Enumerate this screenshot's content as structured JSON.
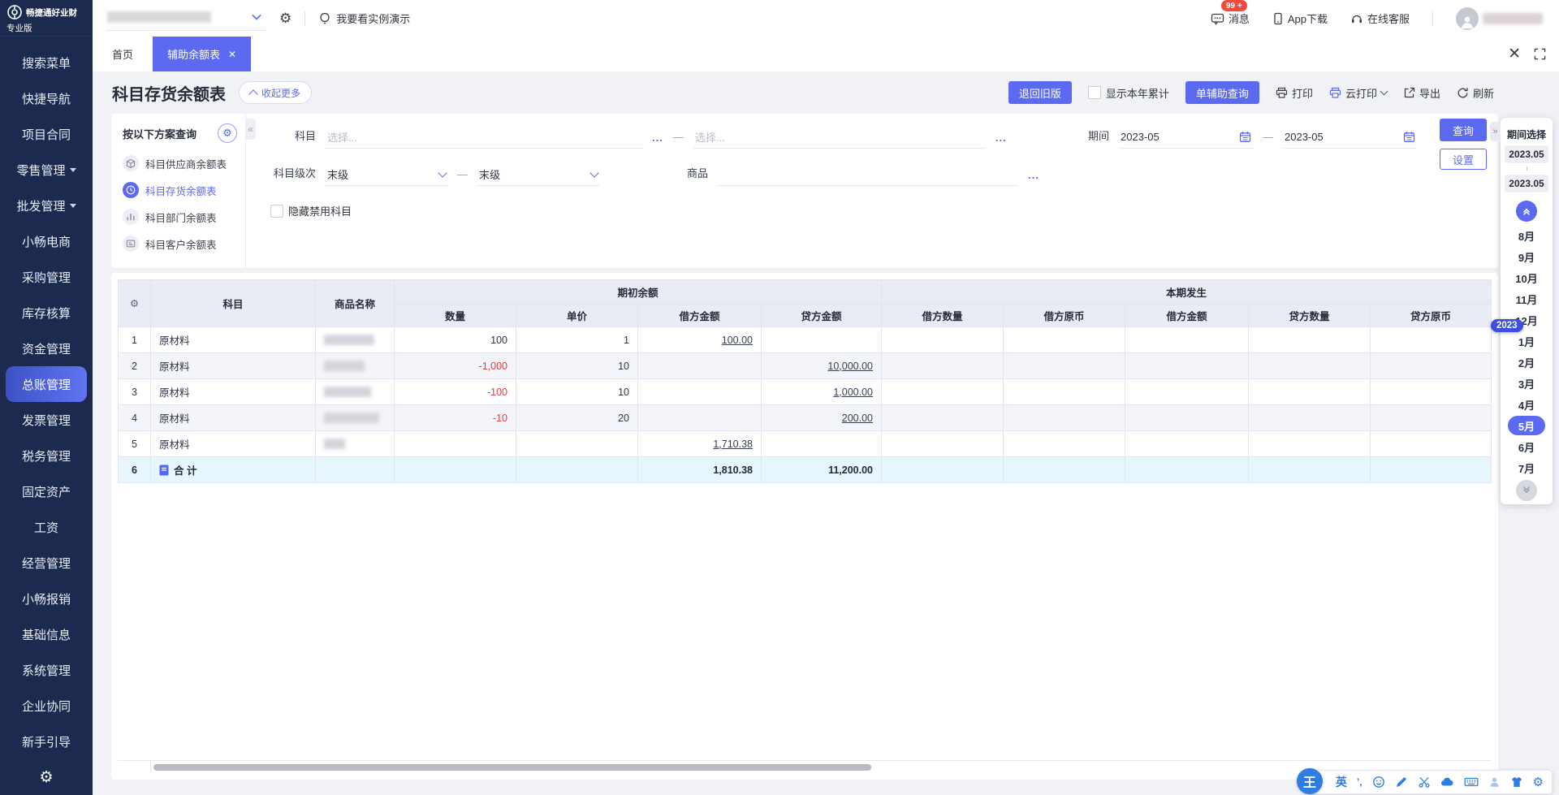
{
  "brand": {
    "name": "畅捷通好业财",
    "edition": "专业版"
  },
  "topbar": {
    "demo": "我要看实例演示",
    "messages": "消息",
    "messages_badge": "99 +",
    "app_download": "App下载",
    "online_service": "在线客服"
  },
  "tabs": {
    "home": "首页",
    "active": "辅助余额表"
  },
  "sidebar": {
    "items": [
      {
        "label": "搜索菜单"
      },
      {
        "label": "快捷导航"
      },
      {
        "label": "项目合同"
      },
      {
        "label": "零售管理",
        "caret": true
      },
      {
        "label": "批发管理",
        "caret": true
      },
      {
        "label": "小畅电商"
      },
      {
        "label": "采购管理"
      },
      {
        "label": "库存核算"
      },
      {
        "label": "资金管理"
      },
      {
        "label": "总账管理",
        "active": true
      },
      {
        "label": "发票管理"
      },
      {
        "label": "税务管理"
      },
      {
        "label": "固定资产"
      },
      {
        "label": "工资"
      },
      {
        "label": "经营管理"
      },
      {
        "label": "小畅报销"
      },
      {
        "label": "基础信息"
      },
      {
        "label": "系统管理"
      },
      {
        "label": "企业协同"
      },
      {
        "label": "新手引导"
      }
    ]
  },
  "toolbar": {
    "title": "科目存货余额表",
    "collapse": "收起更多",
    "back_old": "退回旧版",
    "show_ytd": "显示本年累计",
    "aux_query": "单辅助查询",
    "print": "打印",
    "cloud_print": "云打印",
    "export": "导出",
    "refresh": "刷新"
  },
  "scheme": {
    "title": "按以下方案查询",
    "items": [
      {
        "label": "科目供应商余额表",
        "icon": "cube"
      },
      {
        "label": "科目存货余额表",
        "icon": "clock",
        "active": true
      },
      {
        "label": "科目部门余额表",
        "icon": "chart"
      },
      {
        "label": "科目客户余额表",
        "icon": "card"
      }
    ]
  },
  "filters": {
    "subject": "科目",
    "placeholder": "选择...",
    "ellipsis": "...",
    "dash": "—",
    "period": "期间",
    "period_from": "2023-05",
    "period_to": "2023-05",
    "level": "科目级次",
    "level_from": "末级",
    "level_to": "末级",
    "product": "商品",
    "hide_disabled": "隐藏禁用科目",
    "query": "查询",
    "settings": "设置"
  },
  "table": {
    "subject_col": "科目",
    "product_col": "商品名称",
    "opening_group": "期初余额",
    "current_group": "本期发生",
    "opening_cols": [
      "数量",
      "单价",
      "借方金额",
      "贷方金额"
    ],
    "current_cols": [
      "借方数量",
      "借方原币",
      "借方金额",
      "贷方数量",
      "贷方原币"
    ],
    "rows": [
      {
        "no": "1",
        "subject": "原材料",
        "redact": 62,
        "qty": "100",
        "price": "1",
        "debit": "100.00",
        "credit": ""
      },
      {
        "no": "2",
        "subject": "原材料",
        "redact": 50,
        "qty": "-1,000",
        "price": "10",
        "debit": "",
        "credit": "10,000.00"
      },
      {
        "no": "3",
        "subject": "原材料",
        "redact": 58,
        "qty": "-100",
        "price": "10",
        "debit": "",
        "credit": "1,000.00"
      },
      {
        "no": "4",
        "subject": "原材料",
        "redact": 68,
        "qty": "-10",
        "price": "20",
        "debit": "",
        "credit": "200.00"
      },
      {
        "no": "5",
        "subject": "原材料",
        "redact": 26,
        "qty": "",
        "price": "",
        "debit": "1,710.38",
        "credit": ""
      },
      {
        "no": "6",
        "subject": "合 计",
        "qty": "",
        "price": "",
        "debit": "1,810.38",
        "credit": "11,200.00",
        "total": true
      }
    ]
  },
  "period_panel": {
    "title": "期间选择",
    "from": "2023.05",
    "to": "2023.05",
    "year_badge": "2023",
    "months": [
      "8月",
      "9月",
      "10月",
      "11月",
      "12月",
      "1月",
      "2月",
      "3月",
      "4月",
      "5月",
      "6月",
      "7月"
    ],
    "selected_month": "5月"
  },
  "ime": {
    "logo": "王",
    "lang": "英",
    "punct": "’,"
  }
}
